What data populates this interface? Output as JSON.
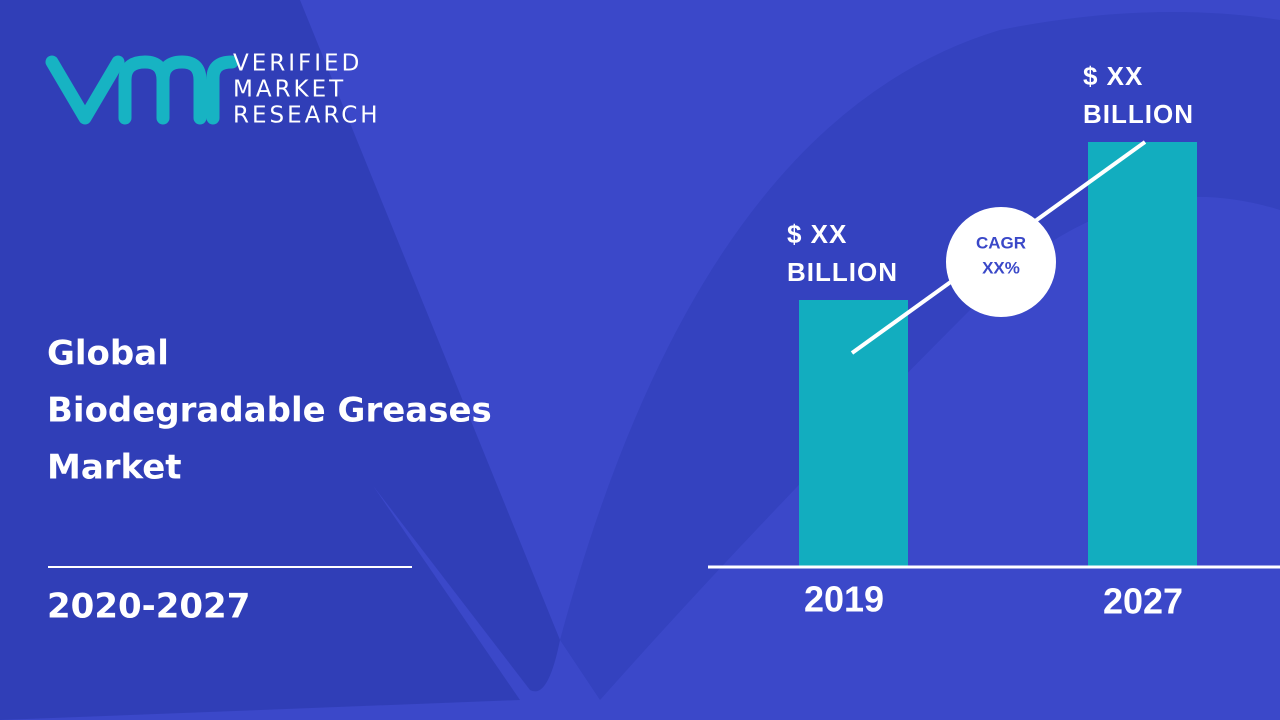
{
  "logo": {
    "lines": [
      "VERIFIED",
      "MARKET",
      "RESEARCH"
    ]
  },
  "title": [
    "Global",
    "Biodegradable Greases",
    "Market"
  ],
  "period": "2020-2027",
  "bars": [
    {
      "year": "2019",
      "label": [
        "$ XX",
        "BILLION"
      ]
    },
    {
      "year": "2027",
      "label": [
        "$ XX",
        "BILLION"
      ]
    }
  ],
  "cagr": {
    "label": "CAGR",
    "value": "XX%"
  }
}
